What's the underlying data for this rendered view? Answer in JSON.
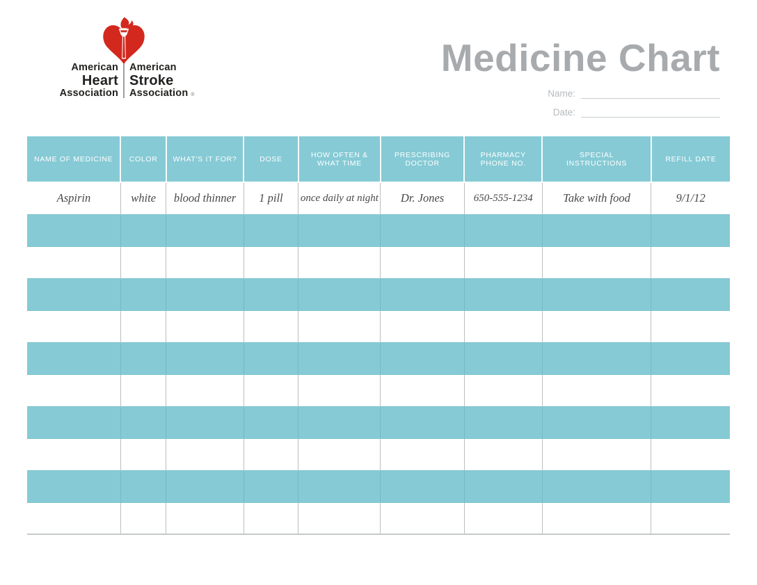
{
  "logo": {
    "heart_icon": "heart-torch-icon",
    "left_org": {
      "line1": "American",
      "line2": "Heart",
      "line3": "Association"
    },
    "right_org": {
      "line1": "American",
      "line2": "Stroke",
      "line3": "Association"
    },
    "registered": "®",
    "heart_color": "#d3281e"
  },
  "masthead": {
    "title": "Medicine Chart",
    "name_label": "Name:",
    "date_label": "Date:",
    "title_color": "#a8abad"
  },
  "table": {
    "headers": [
      "NAME OF MEDICINE",
      "COLOR",
      "WHAT'S IT FOR?",
      "DOSE",
      "HOW OFTEN & WHAT TIME",
      "PRESCRIBING DOCTOR",
      "PHARMACY PHONE NO.",
      "SPECIAL INSTRUCTIONS",
      "REFILL DATE"
    ],
    "rows": [
      [
        "Aspirin",
        "white",
        "blood thinner",
        "1 pill",
        "once daily at night",
        "Dr. Jones",
        "650-555-1234",
        "Take with food",
        "9/1/12"
      ],
      [
        "",
        "",
        "",
        "",
        "",
        "",
        "",
        "",
        ""
      ],
      [
        "",
        "",
        "",
        "",
        "",
        "",
        "",
        "",
        ""
      ],
      [
        "",
        "",
        "",
        "",
        "",
        "",
        "",
        "",
        ""
      ],
      [
        "",
        "",
        "",
        "",
        "",
        "",
        "",
        "",
        ""
      ],
      [
        "",
        "",
        "",
        "",
        "",
        "",
        "",
        "",
        ""
      ],
      [
        "",
        "",
        "",
        "",
        "",
        "",
        "",
        "",
        ""
      ],
      [
        "",
        "",
        "",
        "",
        "",
        "",
        "",
        "",
        ""
      ],
      [
        "",
        "",
        "",
        "",
        "",
        "",
        "",
        "",
        ""
      ],
      [
        "",
        "",
        "",
        "",
        "",
        "",
        "",
        "",
        ""
      ],
      [
        "",
        "",
        "",
        "",
        "",
        "",
        "",
        "",
        ""
      ]
    ],
    "stripe_color": "#85cad5"
  }
}
